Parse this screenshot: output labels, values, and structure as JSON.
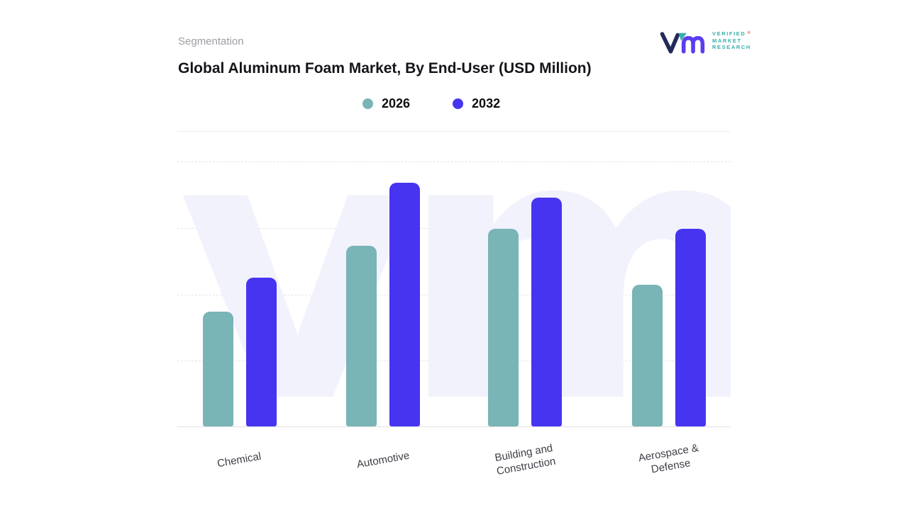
{
  "header": {
    "eyebrow": "Segmentation",
    "title": "Global Aluminum Foam Market, By End-User (USD Million)"
  },
  "logo": {
    "lines": [
      "VERIFIED",
      "MARKET",
      "RESEARCH"
    ],
    "registered": "®",
    "text_color": "#35b0ac",
    "mark_colors": {
      "navy": "#232a5c",
      "teal": "#35b0ac",
      "purple": "#5b3df0"
    }
  },
  "watermark": {
    "text": "vm"
  },
  "chart_data": {
    "type": "bar",
    "title": "Global Aluminum Foam Market, By End-User (USD Million)",
    "categories": [
      "Chemical",
      "Automotive",
      "Building and Construction",
      "Aerospace & Defense"
    ],
    "series": [
      {
        "name": "2026",
        "color": "#79b4b6",
        "values": [
          47,
          74,
          81,
          58
        ]
      },
      {
        "name": "2032",
        "color": "#4734f0",
        "values": [
          61,
          100,
          94,
          81
        ]
      }
    ],
    "ylim": [
      0,
      109
    ],
    "xlabel": "",
    "ylabel": "",
    "grid": "horizontal-dashed",
    "legend_position": "top-center",
    "values_note": "Y-axis has no tick labels; values estimated from bar heights with tallest bar (Automotive 2032) = 100"
  }
}
